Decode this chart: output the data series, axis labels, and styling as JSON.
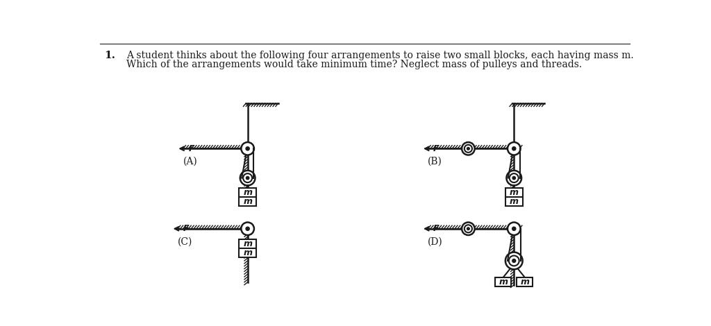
{
  "title_line1": "A student thinks about the following four arrangements to raise two small blocks, each having mass m.",
  "title_line2": "Which of the arrangements would take minimum time? Neglect mass of pulleys and threads.",
  "question_num": "1.",
  "bg_color": "#ffffff",
  "line_color": "#1a1a1a",
  "text_color": "#1a1a1a",
  "fig_width": 10.24,
  "fig_height": 4.7
}
